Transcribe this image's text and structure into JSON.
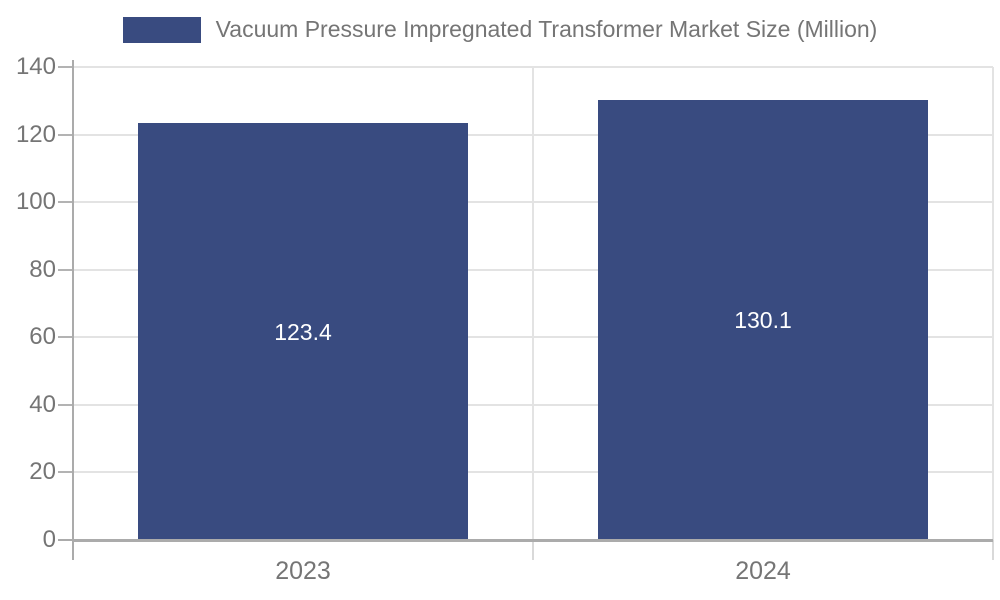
{
  "chart_data": {
    "type": "bar",
    "title": "Vacuum Pressure Impregnated Transformer Market Size (Million)",
    "legend": {
      "position": "top",
      "entries": [
        "Vacuum Pressure Impregnated Transformer Market Size (Million)"
      ]
    },
    "categories": [
      "2023",
      "2024"
    ],
    "values": [
      123.4,
      130.1
    ],
    "value_labels": [
      "123.4",
      "130.1"
    ],
    "xlabel": "",
    "ylabel": "",
    "ylim": [
      0,
      140
    ],
    "ytick_step": 20,
    "yticks": [
      "0",
      "20",
      "40",
      "60",
      "80",
      "100",
      "120",
      "140"
    ],
    "grid": true,
    "colors": {
      "bar": "#394B80",
      "value_label": "#ffffff",
      "axis_text": "#757575",
      "axis_line": "#ababab",
      "gridline": "#e3e3e3",
      "tick": "#b3b3b3",
      "background": "#ffffff"
    }
  }
}
